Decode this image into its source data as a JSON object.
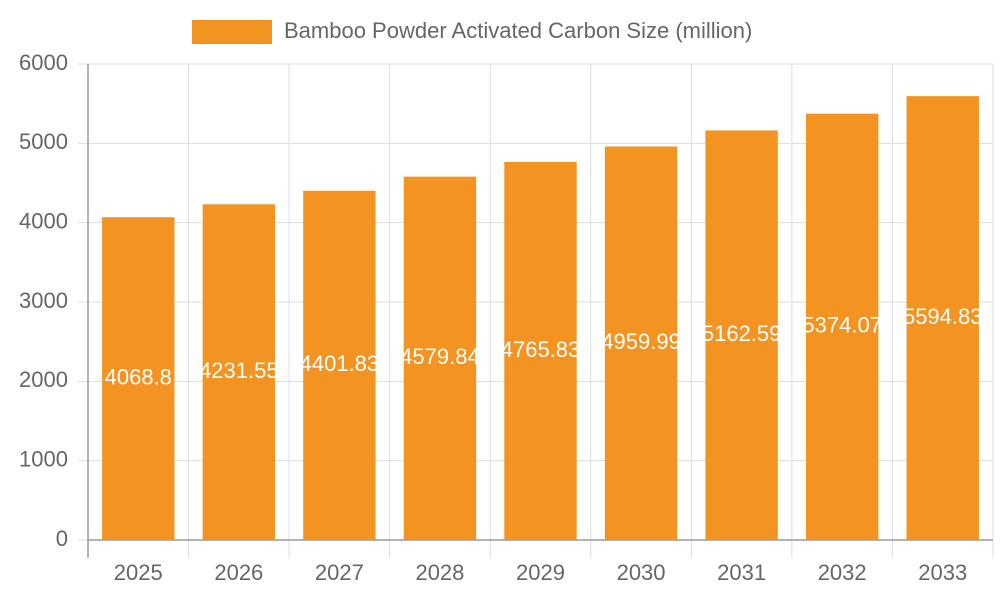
{
  "chart_data": {
    "type": "bar",
    "series": [
      {
        "name": "Bamboo Powder Activated Carbon Size (million)",
        "color": "#f39422",
        "values": [
          4068.8,
          4231.55,
          4401.83,
          4579.84,
          4765.83,
          4959.99,
          5162.59,
          5374.07,
          5594.83
        ]
      }
    ],
    "categories": [
      "2025",
      "2026",
      "2027",
      "2028",
      "2029",
      "2030",
      "2031",
      "2032",
      "2033"
    ],
    "ylim": [
      0,
      6000
    ],
    "yticks": [
      0,
      1000,
      2000,
      3000,
      4000,
      5000,
      6000
    ],
    "grid": true
  }
}
